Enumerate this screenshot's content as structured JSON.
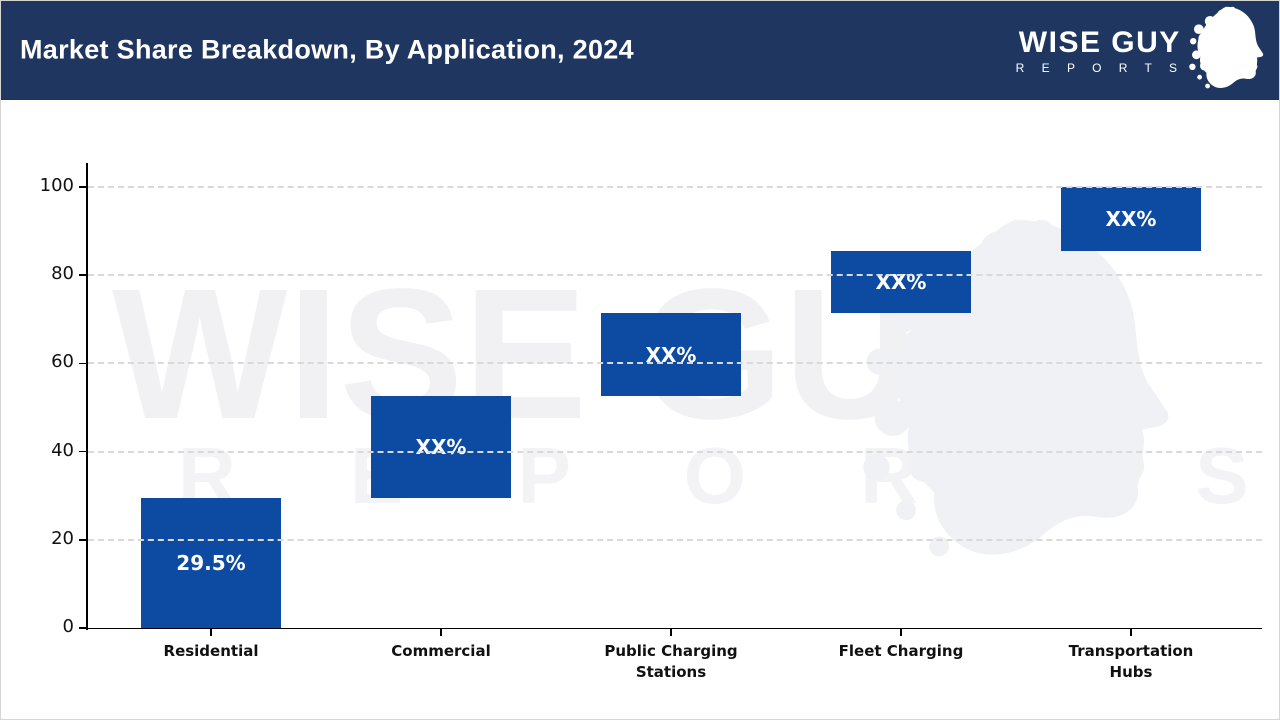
{
  "header": {
    "title": "Market Share Breakdown, By Application, 2024",
    "logo": {
      "line1": "WISE GUY",
      "line2": "R E P O R T S",
      "icon": "face-dots-icon"
    }
  },
  "watermark": {
    "line1": "WISE GUY",
    "line2": "R E P O R T S"
  },
  "colors": {
    "header_bg": "#1f3661",
    "bar": "#0c4ba1",
    "bar_label": "#ffffff",
    "gridline": "#d9d9d9",
    "axis": "#000000",
    "watermark": "#f1f1f3"
  },
  "chart_data": {
    "type": "bar",
    "variant": "waterfall",
    "title": "Market Share Breakdown, By Application, 2024",
    "categories": [
      "Residential",
      "Commercial",
      "Public Charging Stations",
      "Fleet Charging",
      "Transportation Hubs"
    ],
    "segments": [
      {
        "category": "Residential",
        "start": 0,
        "end": 29.5,
        "label": "29.5%"
      },
      {
        "category": "Commercial",
        "start": 29.5,
        "end": 52.5,
        "label": "XX%"
      },
      {
        "category": "Public Charging Stations",
        "start": 52.5,
        "end": 71.5,
        "label": "XX%"
      },
      {
        "category": "Fleet Charging",
        "start": 71.5,
        "end": 85.5,
        "label": "XX%"
      },
      {
        "category": "Transportation Hubs",
        "start": 85.5,
        "end": 100,
        "label": "XX%"
      }
    ],
    "xlabel": "",
    "ylabel": "",
    "ylim": [
      0,
      100
    ],
    "yticks": [
      0,
      20,
      40,
      60,
      80,
      100
    ],
    "grid": "horizontal-dashed",
    "legend": "none"
  }
}
